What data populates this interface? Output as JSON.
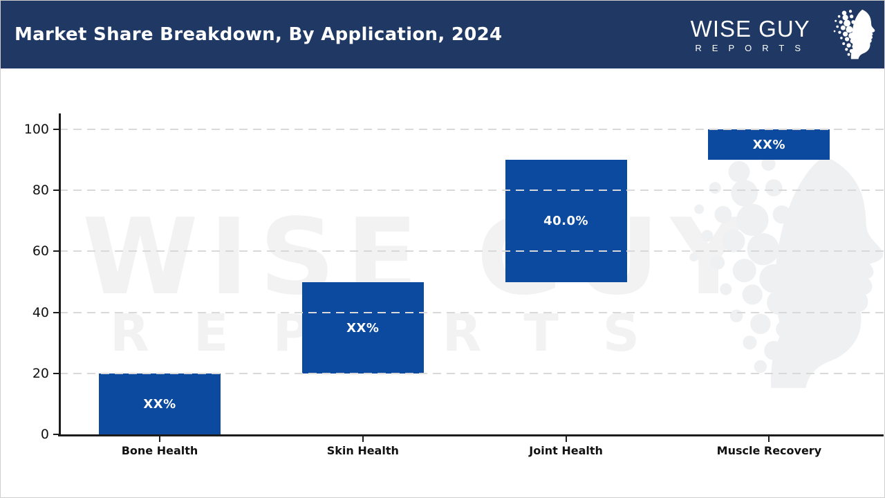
{
  "header": {
    "title": "Market Share Breakdown, By Application, 2024",
    "logo": {
      "line1": "WISE GUY",
      "line2": "REPORTS"
    }
  },
  "watermark": {
    "line1": "WISE GUY",
    "line2": "REPORTS"
  },
  "colors": {
    "header_bg": "#1f3864",
    "bar": "#0b4a9e",
    "grid": "#d9d9d9",
    "axis": "#1c1c1c",
    "bar_label_text": "#ffffff",
    "watermark": "#f2f2f3",
    "figure_border": "#cfcfcf"
  },
  "chart_data": {
    "type": "waterfall",
    "title": "Market Share Breakdown, By Application, 2024",
    "categories": [
      "Bone Health",
      "Skin Health",
      "Joint Health",
      "Muscle Recovery"
    ],
    "segments": [
      {
        "category": "Bone Health",
        "start": 0,
        "end": 20,
        "label": "XX%"
      },
      {
        "category": "Skin Health",
        "start": 20,
        "end": 50,
        "label": "XX%"
      },
      {
        "category": "Joint Health",
        "start": 50,
        "end": 90,
        "label": "40.0%"
      },
      {
        "category": "Muscle Recovery",
        "start": 90,
        "end": 100,
        "label": "XX%"
      }
    ],
    "y_ticks": [
      0,
      20,
      40,
      60,
      80,
      100
    ],
    "ylim": [
      0,
      105
    ],
    "xlabel": "",
    "ylabel": "",
    "grid": "dashed-horizontal",
    "legend": "none",
    "bar_color": "#0b4a9e",
    "bar_width_frac": 0.6
  }
}
